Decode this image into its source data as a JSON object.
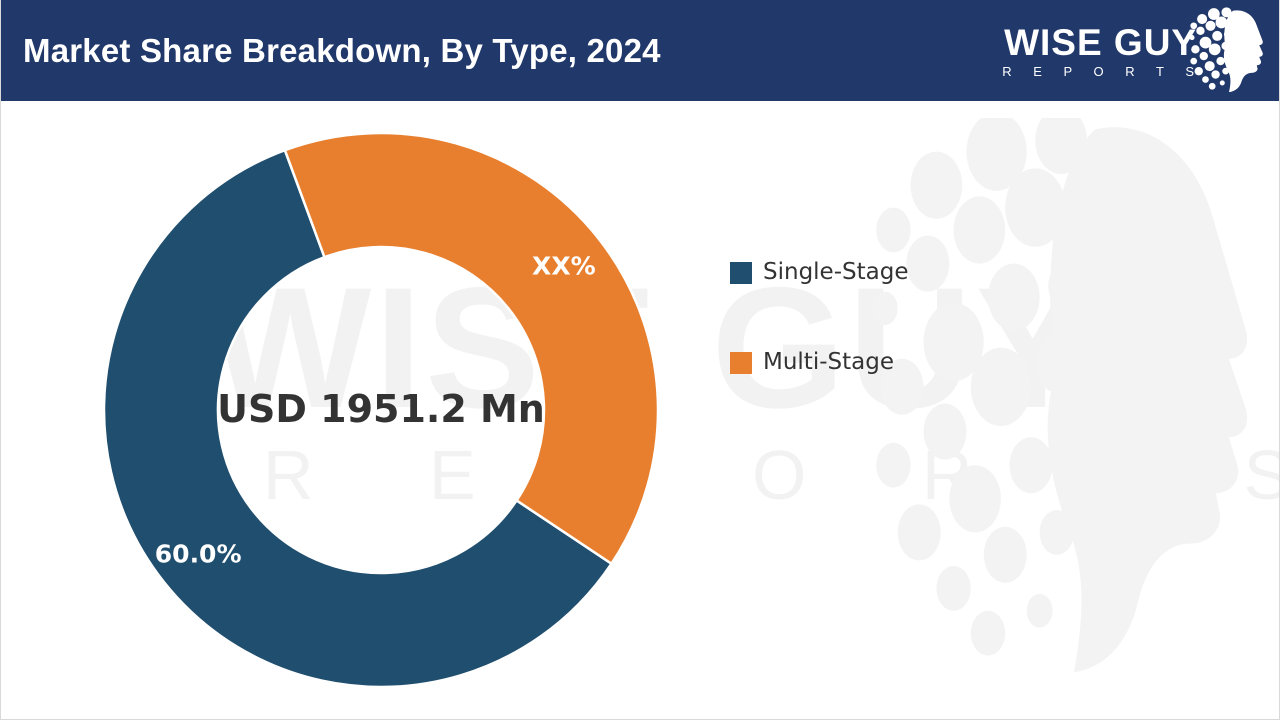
{
  "header": {
    "title": "Market Share Breakdown, By Type, 2024",
    "background_color": "#21386b",
    "logo": {
      "line1": "WISE GUY",
      "line2": "R E P O R T S"
    }
  },
  "watermark": {
    "line1": "WISE GUY",
    "line2": "R E P O R T S"
  },
  "chart_data": {
    "type": "pie",
    "donut": true,
    "title": "Market Share Breakdown, By Type, 2024",
    "center_label": "USD 1951.2 Mn",
    "start_angle_deg": 123.7,
    "direction": "clockwise",
    "legend_position": "right",
    "series": [
      {
        "name": "Single-Stage",
        "value": 60.0,
        "label": "60.0%",
        "color": "#1f4e6e"
      },
      {
        "name": "Multi-Stage",
        "value": 40.0,
        "label": "XX%",
        "color": "#e87f2e"
      }
    ]
  }
}
